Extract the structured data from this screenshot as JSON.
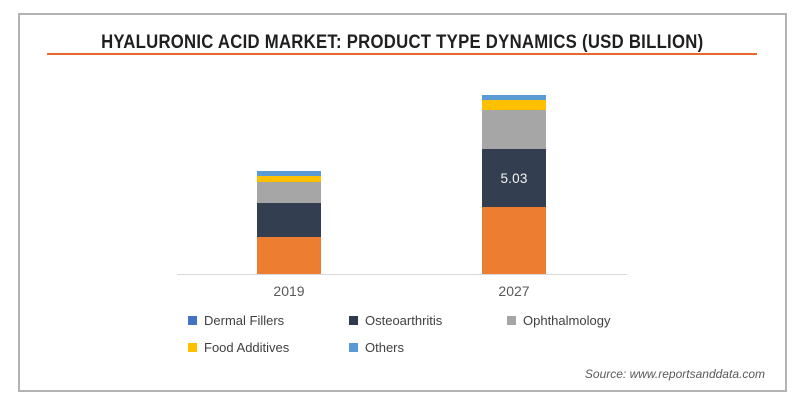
{
  "chart_data": {
    "type": "bar",
    "subtype": "stacked-column",
    "title": "HYALURONIC ACID MARKET: PRODUCT TYPE DYNAMICS (USD BILLION)",
    "categories": [
      "2019",
      "2027"
    ],
    "series": [
      {
        "name": "Dermal Fillers",
        "values": [
          3.21,
          5.81
        ],
        "bar_color": "#ED7D31",
        "legend_color": "#4472C4",
        "data_labels": [
          null,
          null
        ]
      },
      {
        "name": "Osteoarthritis",
        "values": [
          2.95,
          5.03
        ],
        "bar_color": "#333F50",
        "legend_color": "#2E3A4D",
        "data_labels": [
          null,
          "5.03"
        ]
      },
      {
        "name": "Ophthalmology",
        "values": [
          1.82,
          3.38
        ],
        "bar_color": "#A6A6A6",
        "legend_color": "#A6A6A6",
        "data_labels": [
          null,
          null
        ]
      },
      {
        "name": "Food Additives",
        "values": [
          0.52,
          0.91
        ],
        "bar_color": "#FFC000",
        "legend_color": "#FFC000",
        "data_labels": [
          null,
          null
        ]
      },
      {
        "name": "Others",
        "values": [
          0.43,
          0.43
        ],
        "bar_color": "#5B9BD5",
        "legend_color": "#5B9BD5",
        "data_labels": [
          null,
          null
        ]
      }
    ],
    "stack_order": "bottom-to-top as listed",
    "totals": {
      "2019": 8.93,
      "2027": 15.56
    },
    "xlabel": "",
    "ylabel": "",
    "y_axis_visible": false,
    "grid": false,
    "legend_position": "bottom-left, two rows (3 items / 2 items)"
  },
  "source": {
    "text": "Source: www.reportsanddata.com"
  },
  "colors": {
    "frame_border": "#B3B3B3",
    "title_text": "#1F1F1F",
    "title_underline": "#E8662C",
    "axis_line": "#D9D9D9",
    "tick_label": "#595959",
    "legend_text": "#404040",
    "data_label_text": "#F5F5F5",
    "background": "#FFFFFF"
  }
}
